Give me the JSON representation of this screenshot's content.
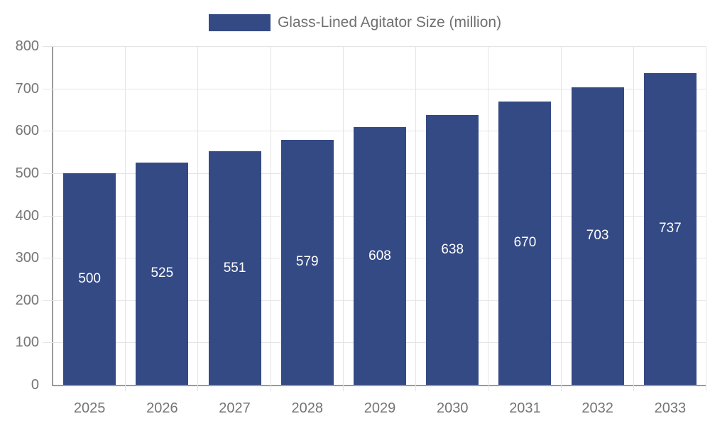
{
  "legend": {
    "label": "Glass-Lined Agitator Size (million)",
    "swatch_color": "#344a85"
  },
  "chart_data": {
    "type": "bar",
    "title": "Glass-Lined Agitator Size (million)",
    "categories": [
      "2025",
      "2026",
      "2027",
      "2028",
      "2029",
      "2030",
      "2031",
      "2032",
      "2033"
    ],
    "values": [
      500,
      525,
      551,
      579,
      608,
      638,
      670,
      703,
      737
    ],
    "series": [
      {
        "name": "Glass-Lined Agitator Size (million)",
        "values": [
          500,
          525,
          551,
          579,
          608,
          638,
          670,
          703,
          737
        ]
      }
    ],
    "xlabel": "",
    "ylabel": "",
    "ylim": [
      0,
      800
    ],
    "ytick_interval": 100,
    "ytick_labels": [
      "0",
      "100",
      "200",
      "300",
      "400",
      "500",
      "600",
      "700",
      "800"
    ],
    "grid": true,
    "legend_position": "top",
    "bar_color": "#344a85",
    "value_label_color": "#ffffff",
    "axis_text_color": "#757575",
    "grid_color": "#e4e4e4",
    "axis_line_color": "#9a9a9a"
  }
}
